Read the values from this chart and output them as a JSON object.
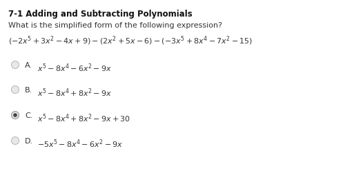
{
  "title": "7-1 Adding and Subtracting Polynomials",
  "question": "What is the simplified form of the following expression?",
  "expression": "($-2x^5 + 3x^2 - 4x + 9) - (2x^2 + 5x - 6) - (-3x^5 + 8x^4 - 7x^2 - 15)$",
  "options": [
    {
      "label": "A.",
      "text": "$x^5 - 8x^4 - 6x^2 - 9x$",
      "selected": false
    },
    {
      "label": "B.",
      "text": "$x^5 - 8x^4 + 8x^2 - 9x$",
      "selected": false
    },
    {
      "label": "C.",
      "text": "$x^5 - 8x^4 + 8x^2 - 9x + 30$",
      "selected": true
    },
    {
      "label": "D.",
      "text": "$-5x^5 - 8x^4 - 6x^2 - 9x$",
      "selected": false
    }
  ],
  "bg_color": "#ffffff",
  "text_color": "#333333",
  "title_color": "#111111",
  "radio_unselected_edge": "#aaaaaa",
  "radio_unselected_fill": "#e8e8e8",
  "radio_selected_outer": "#888888",
  "radio_selected_inner": "#444444"
}
